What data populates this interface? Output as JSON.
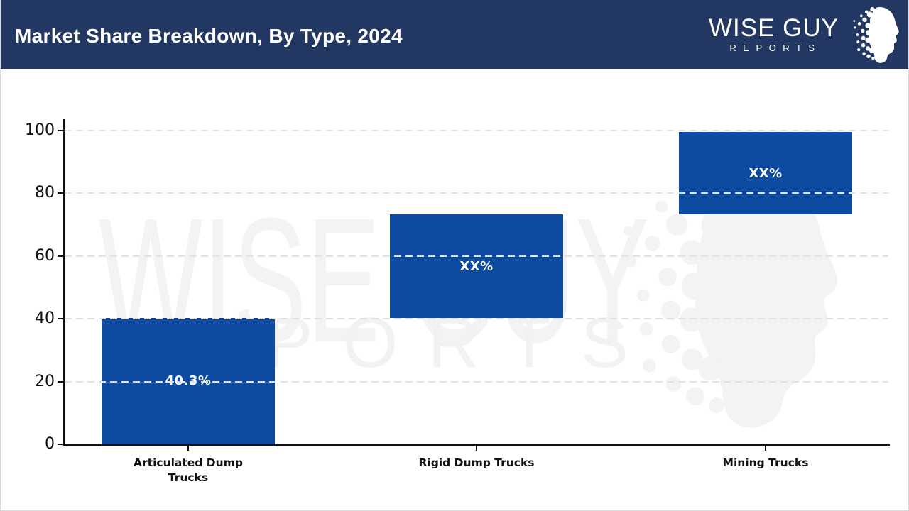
{
  "header": {
    "title": "Market Share Breakdown, By Type, 2024",
    "logo": {
      "line1": "WISE GUY",
      "line2": "REPORTS"
    }
  },
  "watermark": {
    "line1": "WISE GUY",
    "line2": "REPORTS"
  },
  "colors": {
    "header_bg": "#233763",
    "title_text": "#ffffff",
    "bar_fill": "#0d4aa1",
    "bar_label_text": "#ffffff",
    "gridline": "#e3e3e3",
    "axis": "#111111",
    "tick_label_text": "#111111",
    "category_label_text": "#111111",
    "watermark_gray": "#f3f3f3",
    "background": "#ffffff"
  },
  "chart_data": {
    "type": "bar",
    "subtype": "waterfall",
    "title": "Market Share Breakdown, By Type, 2024",
    "categories": [
      "Articulated Dump Trucks",
      "Rigid Dump Trucks",
      "Mining Trucks"
    ],
    "segments": [
      {
        "category": "Articulated Dump Trucks",
        "start": 0,
        "end": 40.3,
        "label": "40.3%"
      },
      {
        "category": "Rigid Dump Trucks",
        "start": 40.3,
        "end": 73.2,
        "label": "XX%"
      },
      {
        "category": "Mining Trucks",
        "start": 73.2,
        "end": 99.5,
        "label": "XX%"
      }
    ],
    "xlabel": "",
    "ylabel": "",
    "yticks": [
      0,
      20,
      40,
      60,
      80,
      100
    ],
    "ylim": [
      0,
      104
    ],
    "grid": "horizontal-dashed",
    "gridlines_over_bars": true,
    "legend": "none",
    "bar_color": "#0d4aa1"
  }
}
